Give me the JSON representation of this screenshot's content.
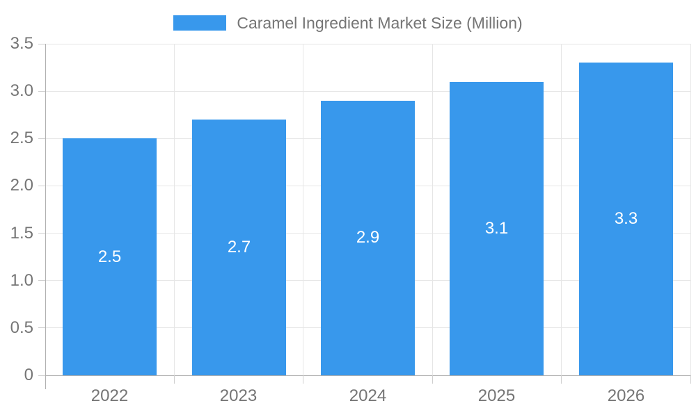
{
  "legend": {
    "label": "Caramel Ingredient Market Size (Million)"
  },
  "colors": {
    "bar": "#3898ec",
    "grid": "#e6e6e6",
    "axis": "#b0b0b0",
    "tick": "#cfcfcf",
    "text": "#757575",
    "bar_label": "#ffffff",
    "background": "#ffffff"
  },
  "chart_data": {
    "type": "bar",
    "title": "Caramel Ingredient Market Size (Million)",
    "categories": [
      "2022",
      "2023",
      "2024",
      "2025",
      "2026"
    ],
    "series": [
      {
        "name": "Caramel Ingredient Market Size (Million)",
        "values": [
          2.5,
          2.7,
          2.9,
          3.1,
          3.3
        ]
      }
    ],
    "bar_labels": [
      "2.5",
      "2.7",
      "2.9",
      "3.1",
      "3.3"
    ],
    "xlabel": "",
    "ylabel": "",
    "ylim": [
      0,
      3.5
    ],
    "yticks": [
      0,
      0.5,
      1,
      1.5,
      2,
      2.5,
      3,
      3.5
    ],
    "ytick_labels": [
      "0",
      "0.5",
      "1.0",
      "1.5",
      "2.0",
      "2.5",
      "3.0",
      "3.5"
    ],
    "grid": true,
    "legend_position": "top",
    "bar_label_position": "middle"
  }
}
